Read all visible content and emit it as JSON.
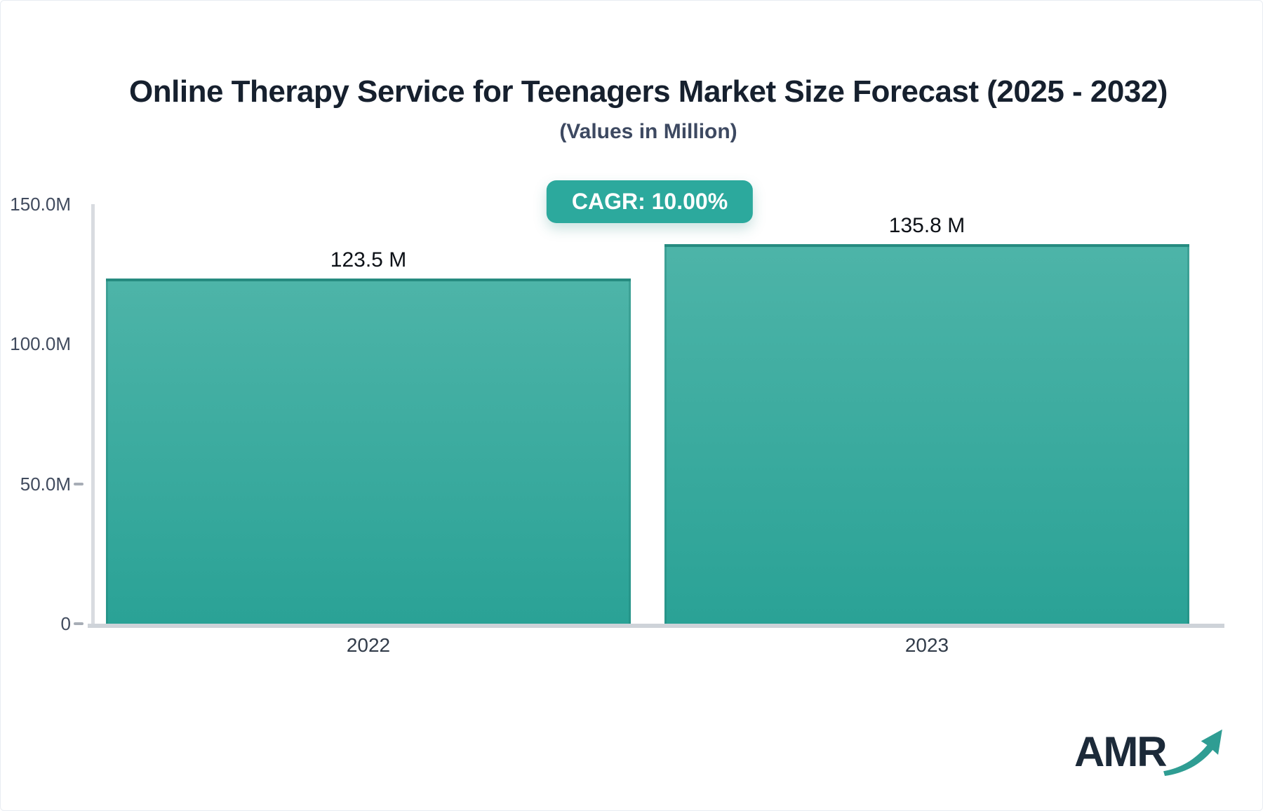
{
  "header": {
    "title": "Online Therapy Service for Teenagers Market Size Forecast (2025 - 2032)",
    "subtitle": "(Values in Million)"
  },
  "badge": {
    "label": "CAGR: 10.00%",
    "color": "#2ca99d"
  },
  "chart_data": {
    "type": "bar",
    "title": "Online Therapy Service for Teenagers Market Size Forecast (2025 - 2032)",
    "subtitle": "(Values in Million)",
    "categories": [
      "2022",
      "2023"
    ],
    "values": [
      123.5,
      135.8
    ],
    "value_labels": [
      "123.5 M",
      "135.8 M"
    ],
    "xlabel": "",
    "ylabel": "",
    "ylim": [
      0,
      150
    ],
    "yticks": [
      {
        "value": 150,
        "label": "150.0M",
        "dash": false
      },
      {
        "value": 100,
        "label": "100.0M",
        "dash": false
      },
      {
        "value": 50,
        "label": "50.0M",
        "dash": true
      },
      {
        "value": 0,
        "label": "0",
        "dash": true
      }
    ],
    "grid": false,
    "legend_position": "none",
    "bar_color_top": "#4db4a8",
    "bar_color_bottom": "#2aa296",
    "bar_border_color": "#268b80"
  },
  "logo": {
    "text": "AMR",
    "arrow_icon": "trend-up-arrow",
    "text_color": "#1c2a39",
    "arrow_color": "#2f9d93"
  }
}
